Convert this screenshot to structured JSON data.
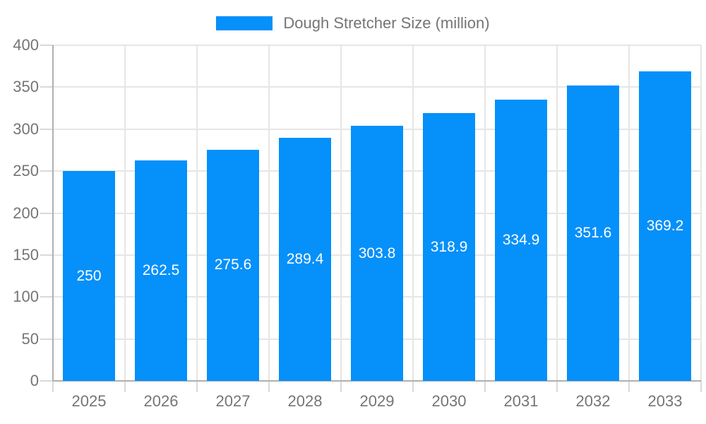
{
  "chart_data": {
    "type": "bar",
    "title": "Dough Stretcher Size (million)",
    "legend": {
      "label": "Dough Stretcher Size (million)",
      "position": "top-center"
    },
    "categories": [
      "2025",
      "2026",
      "2027",
      "2028",
      "2029",
      "2030",
      "2031",
      "2032",
      "2033"
    ],
    "series": [
      {
        "name": "Dough Stretcher Size (million)",
        "values": [
          250,
          262.5,
          275.6,
          289.4,
          303.8,
          318.9,
          334.9,
          351.6,
          369.2
        ]
      }
    ],
    "value_labels": [
      "250",
      "262.5",
      "275.6",
      "289.4",
      "303.8",
      "318.9",
      "334.9",
      "351.6",
      "369.2"
    ],
    "value_label_position": "inside-center",
    "xlabel": "",
    "ylabel": "",
    "ylim": [
      0,
      400
    ],
    "ytick_step": 50,
    "ytick_labels": [
      "0",
      "50",
      "100",
      "150",
      "200",
      "250",
      "300",
      "350",
      "400"
    ],
    "grid": true,
    "colors": {
      "bar": "#0690FA",
      "axis_text": "#757575",
      "grid": "#E6E6E6",
      "axis_line": "#AFAFAF",
      "tick": "#D9D9D9",
      "value_label": "#FFFFFF",
      "background": "#FFFFFF"
    }
  }
}
